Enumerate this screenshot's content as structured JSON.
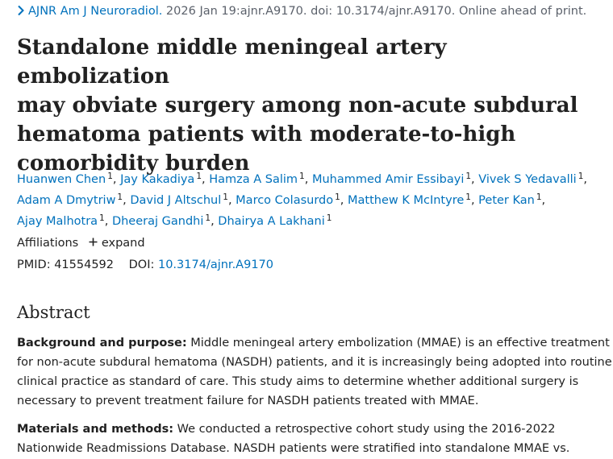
{
  "citation": {
    "journal": "AJNR Am J Neuroradiol.",
    "details": " 2026 Jan 19:ajnr.A9170. doi: 10.3174/ajnr.A9170. Online ahead of print."
  },
  "article": {
    "title_lines": [
      "Standalone middle meningeal artery embolization",
      "may obviate surgery among non-acute subdural",
      "hematoma patients with moderate-to-high",
      "comorbidity burden"
    ]
  },
  "authors": [
    [
      {
        "name": "Huanwen Chen",
        "sup": "1"
      },
      {
        "name": "Jay Kakadiya",
        "sup": "1"
      },
      {
        "name": "Hamza A Salim",
        "sup": "1"
      },
      {
        "name": "Muhammed Amir Essibayi",
        "sup": "1"
      },
      {
        "name": "Vivek S Yedavalli",
        "sup": "1"
      }
    ],
    [
      {
        "name": "Adam A Dmytriw",
        "sup": "1"
      },
      {
        "name": "David J Altschul",
        "sup": "1"
      },
      {
        "name": "Marco Colasurdo",
        "sup": "1"
      },
      {
        "name": "Matthew K McIntyre",
        "sup": "1"
      },
      {
        "name": "Peter Kan",
        "sup": "1"
      }
    ],
    [
      {
        "name": "Ajay Malhotra",
        "sup": "1"
      },
      {
        "name": "Dheeraj Gandhi",
        "sup": "1"
      },
      {
        "name": "Dhairya A Lakhani",
        "sup": "1"
      }
    ]
  ],
  "affiliations": {
    "label": "Affiliations",
    "expand_label": "expand"
  },
  "identifiers": {
    "pmid_label": "PMID:",
    "pmid": "41554592",
    "doi_label": "DOI:",
    "doi": "10.3174/ajnr.A9170"
  },
  "abstract": {
    "heading": "Abstract",
    "background": {
      "label": "Background and purpose:",
      "lines": [
        " Middle meningeal artery embolization (MMAE) is an effective treatment",
        "for non-acute subdural hematoma (NASDH) patients, and it is increasingly being adopted into routine",
        "clinical practice as standard of care. This study aims to determine whether additional surgery is",
        "necessary to prevent treatment failure for NASDH patients treated with MMAE."
      ]
    },
    "methods": {
      "label": "Materials and methods:",
      "lines": [
        " We conducted a retrospective cohort study using the 2016-2022",
        "Nationwide Readmissions Database. NASDH patients were stratified into standalone MMAE vs."
      ]
    }
  },
  "icons": {
    "citation_chevron": "chevron-right-icon",
    "affiliations_expand": "plus-icon"
  },
  "colors": {
    "link": "#0071bc",
    "text": "#212121",
    "muted": "#5b616b"
  }
}
